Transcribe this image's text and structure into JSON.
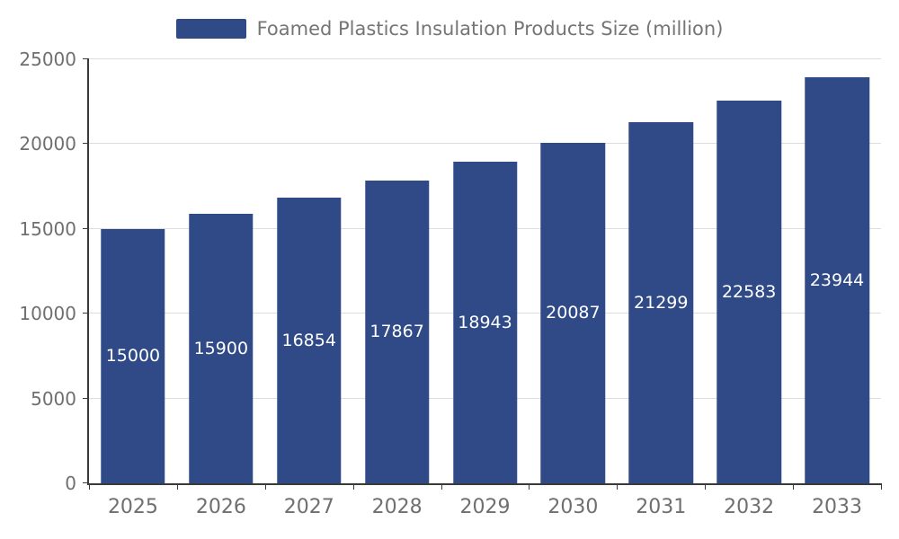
{
  "chart_data": {
    "type": "bar",
    "title": "Foamed Plastics Insulation Products Size (million)",
    "categories": [
      "2025",
      "2026",
      "2027",
      "2028",
      "2029",
      "2030",
      "2031",
      "2032",
      "2033"
    ],
    "values": [
      15000,
      15900,
      16854,
      17867,
      18943,
      20087,
      21299,
      22583,
      23944
    ],
    "xlabel": "",
    "ylabel": "",
    "ylim": [
      0,
      25000
    ],
    "yticks": [
      0,
      5000,
      10000,
      15000,
      20000,
      25000
    ],
    "grid": true,
    "legend_position": "top",
    "colors": {
      "bar": "#2f4a87",
      "bar_value_label": "#ffffff",
      "axis_line": "#3a3a3a",
      "gridline": "#dddddd",
      "tick_label": "#6f6f6f",
      "title_text": "#757575",
      "background": "#ffffff"
    }
  }
}
